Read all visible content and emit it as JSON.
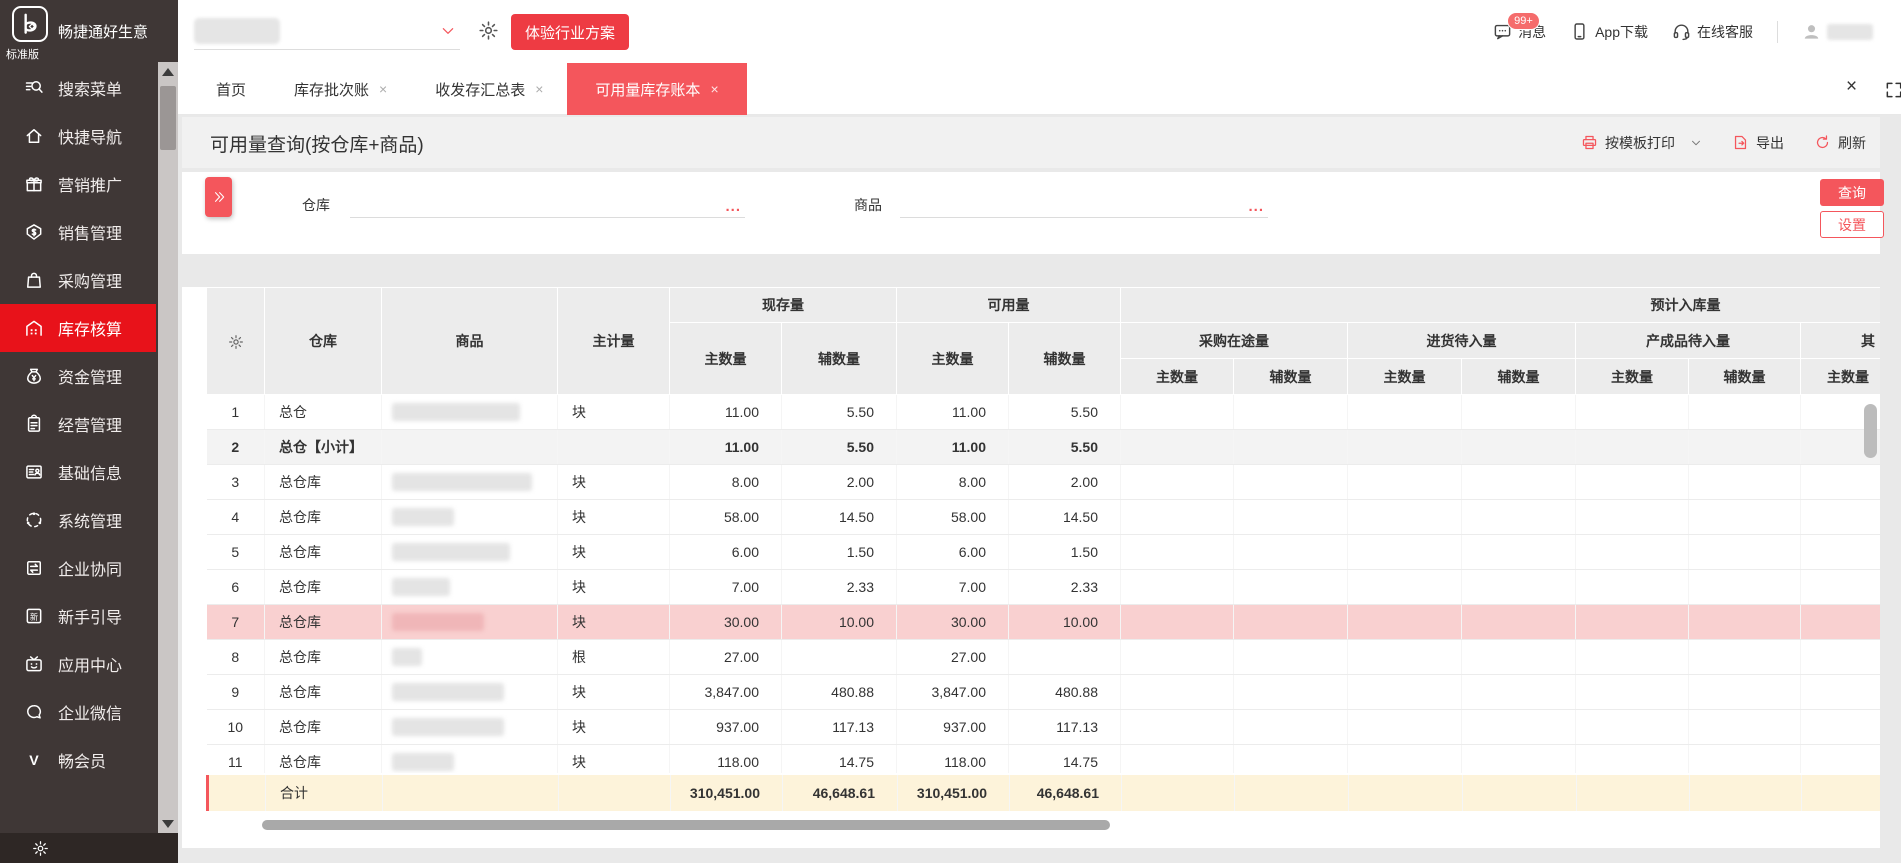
{
  "app": {
    "brand": "畅捷通好生意",
    "edition": "标准版"
  },
  "theme": {
    "sidebar_bg": "#3f3736",
    "active_item_red": "#e8121a",
    "accent_pink": "#f4565c",
    "experience_btn_red": "#ee3b43",
    "highlight_row": "#f9d0d0",
    "total_row_bg": "#fdf3da"
  },
  "ui": {
    "close_glyph": "×",
    "more_glyph": "..."
  },
  "sidebar": {
    "items": [
      {
        "id": "search",
        "icon": "search",
        "label": "搜索菜单"
      },
      {
        "id": "quick-nav",
        "icon": "home",
        "label": "快捷导航"
      },
      {
        "id": "marketing",
        "icon": "gift",
        "label": "营销推广"
      },
      {
        "id": "sales",
        "icon": "sales",
        "label": "销售管理"
      },
      {
        "id": "purchase",
        "icon": "purchase",
        "label": "采购管理"
      },
      {
        "id": "inventory",
        "icon": "inventory",
        "label": "库存核算",
        "active": true
      },
      {
        "id": "funds",
        "icon": "funds",
        "label": "资金管理"
      },
      {
        "id": "operation",
        "icon": "operation",
        "label": "经营管理"
      },
      {
        "id": "basic-info",
        "icon": "basicinfo",
        "label": "基础信息"
      },
      {
        "id": "system",
        "icon": "system",
        "label": "系统管理"
      },
      {
        "id": "collaboration",
        "icon": "collab",
        "label": "企业协同"
      },
      {
        "id": "newbie-guide",
        "icon": "newbie",
        "label": "新手引导"
      },
      {
        "id": "app-center",
        "icon": "appcenter",
        "label": "应用中心"
      },
      {
        "id": "wechat",
        "icon": "wechat",
        "label": "企业微信"
      },
      {
        "id": "member",
        "icon": "member",
        "label": "畅会员"
      }
    ]
  },
  "topbar": {
    "experience_button": "体验行业方案",
    "messages_label": "消息",
    "badge": "99+",
    "app_download_label": "App下载",
    "support_label": "在线客服"
  },
  "tabs": [
    {
      "label": "首页",
      "closable": false
    },
    {
      "label": "库存批次账",
      "closable": true
    },
    {
      "label": "收发存汇总表",
      "closable": true
    },
    {
      "label": "可用量库存账本",
      "closable": true,
      "active": true
    }
  ],
  "page": {
    "title": "可用量查询(按仓库+商品)",
    "toolbar": [
      {
        "icon": "printer",
        "label": "按模板打印",
        "has_dropdown": true
      },
      {
        "icon": "export",
        "label": "导出"
      },
      {
        "icon": "refresh",
        "label": "刷新"
      }
    ]
  },
  "filters": {
    "warehouse_label": "仓库",
    "product_label": "商品",
    "query_button": "查询",
    "settings_button": "设置"
  },
  "table": {
    "fixed_columns": [
      {
        "label": "仓库"
      },
      {
        "label": "商品"
      },
      {
        "label": "主计量"
      }
    ],
    "qty_groups": [
      {
        "label": "现存量",
        "subs": [
          "主数量",
          "辅数量"
        ]
      },
      {
        "label": "可用量",
        "subs": [
          "主数量",
          "辅数量"
        ]
      }
    ],
    "forecast_group": {
      "label": "预计入库量",
      "subgroups": [
        {
          "label": "采购在途量",
          "subs": [
            "主数量",
            "辅数量"
          ]
        },
        {
          "label": "进货待入量",
          "subs": [
            "主数量",
            "辅数量"
          ]
        },
        {
          "label": "产成品待入量",
          "subs": [
            "主数量",
            "辅数量"
          ]
        },
        {
          "label": "其",
          "subs": [
            "主数量"
          ],
          "clipped": true
        }
      ]
    },
    "rows": [
      {
        "idx": "1",
        "warehouse": "总仓",
        "unit": "块",
        "qty": [
          "11.00",
          "5.50",
          "11.00",
          "5.50"
        ],
        "mask_w": 128
      },
      {
        "idx": "2",
        "warehouse": "总仓【小计】",
        "unit": "",
        "qty": [
          "11.00",
          "5.50",
          "11.00",
          "5.50"
        ],
        "subtotal": true,
        "mask_w": 0
      },
      {
        "idx": "3",
        "warehouse": "总仓库",
        "unit": "块",
        "qty": [
          "8.00",
          "2.00",
          "8.00",
          "2.00"
        ],
        "mask_w": 140
      },
      {
        "idx": "4",
        "warehouse": "总仓库",
        "unit": "块",
        "qty": [
          "58.00",
          "14.50",
          "58.00",
          "14.50"
        ],
        "mask_w": 62
      },
      {
        "idx": "5",
        "warehouse": "总仓库",
        "unit": "块",
        "qty": [
          "6.00",
          "1.50",
          "6.00",
          "1.50"
        ],
        "mask_w": 118
      },
      {
        "idx": "6",
        "warehouse": "总仓库",
        "unit": "块",
        "qty": [
          "7.00",
          "2.33",
          "7.00",
          "2.33"
        ],
        "mask_w": 58
      },
      {
        "idx": "7",
        "warehouse": "总仓库",
        "unit": "块",
        "qty": [
          "30.00",
          "10.00",
          "30.00",
          "10.00"
        ],
        "highlight": true,
        "mask_w": 92
      },
      {
        "idx": "8",
        "warehouse": "总仓库",
        "unit": "根",
        "qty": [
          "27.00",
          "",
          "27.00",
          ""
        ],
        "mask_w": 30
      },
      {
        "idx": "9",
        "warehouse": "总仓库",
        "unit": "块",
        "qty": [
          "3,847.00",
          "480.88",
          "3,847.00",
          "480.88"
        ],
        "mask_w": 112
      },
      {
        "idx": "10",
        "warehouse": "总仓库",
        "unit": "块",
        "qty": [
          "937.00",
          "117.13",
          "937.00",
          "117.13"
        ],
        "mask_w": 112
      },
      {
        "idx": "11",
        "warehouse": "总仓库",
        "unit": "块",
        "qty": [
          "118.00",
          "14.75",
          "118.00",
          "14.75"
        ],
        "mask_w": 62
      }
    ],
    "total_row": {
      "label": "合计",
      "qty": [
        "310,451.00",
        "46,648.61",
        "310,451.00",
        "46,648.61"
      ]
    }
  }
}
